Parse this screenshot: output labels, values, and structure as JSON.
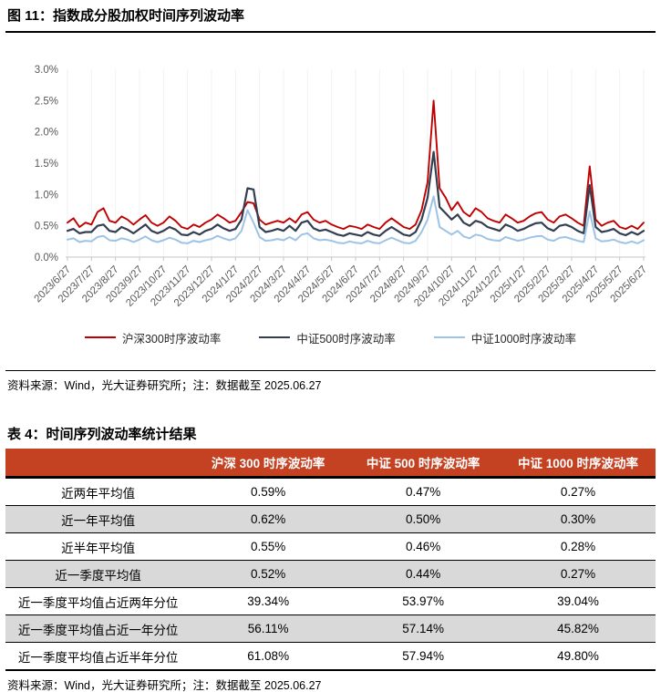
{
  "figure": {
    "title": "图 11：指数成分股加权时间序列波动率",
    "source_note": "资料来源：Wind，光大证券研究所；注：数据截至 2025.06.27"
  },
  "chart_data": {
    "type": "line",
    "title": "指数成分股加权时间序列波动率",
    "xlabel": "",
    "ylabel": "",
    "ylim": [
      0,
      3.0
    ],
    "ytick_labels": [
      "0.0%",
      "0.5%",
      "1.0%",
      "1.5%",
      "2.0%",
      "2.5%",
      "3.0%"
    ],
    "grid": "faint-vertical-only",
    "legend_position": "bottom",
    "axis_color": "#C6C6C6",
    "tick_text_color": "#595959",
    "categories": [
      "2023/6/27",
      "2023/7/27",
      "2023/8/27",
      "2023/9/27",
      "2023/10/27",
      "2023/11/27",
      "2023/12/27",
      "2024/1/27",
      "2024/2/27",
      "2024/3/27",
      "2024/4/27",
      "2024/5/27",
      "2024/6/27",
      "2024/7/27",
      "2024/8/27",
      "2024/9/27",
      "2024/10/27",
      "2024/11/27",
      "2024/12/27",
      "2025/1/27",
      "2025/2/27",
      "2025/3/27",
      "2025/4/27",
      "2025/5/27",
      "2025/6/27"
    ],
    "points_per_month": 4,
    "unit": "percent",
    "series": [
      {
        "name": "沪深300时序波动率",
        "color": "#C00000",
        "width": 1.9,
        "values": [
          0.55,
          0.62,
          0.48,
          0.55,
          0.52,
          0.72,
          0.78,
          0.58,
          0.55,
          0.65,
          0.6,
          0.52,
          0.6,
          0.67,
          0.55,
          0.5,
          0.55,
          0.65,
          0.58,
          0.48,
          0.45,
          0.52,
          0.48,
          0.55,
          0.6,
          0.68,
          0.62,
          0.55,
          0.58,
          0.72,
          0.88,
          0.86,
          0.6,
          0.52,
          0.55,
          0.58,
          0.55,
          0.62,
          0.55,
          0.68,
          0.72,
          0.6,
          0.55,
          0.58,
          0.52,
          0.48,
          0.45,
          0.5,
          0.48,
          0.45,
          0.52,
          0.48,
          0.45,
          0.55,
          0.62,
          0.55,
          0.48,
          0.45,
          0.52,
          0.75,
          1.2,
          2.5,
          1.1,
          0.95,
          0.75,
          0.88,
          0.72,
          0.65,
          0.78,
          0.72,
          0.62,
          0.58,
          0.55,
          0.68,
          0.62,
          0.55,
          0.58,
          0.65,
          0.7,
          0.72,
          0.6,
          0.55,
          0.65,
          0.68,
          0.62,
          0.55,
          0.5,
          1.45,
          0.6,
          0.5,
          0.55,
          0.58,
          0.48,
          0.45,
          0.5,
          0.45,
          0.55
        ]
      },
      {
        "name": "中证500时序波动率",
        "color": "#333F50",
        "width": 2.2,
        "values": [
          0.42,
          0.45,
          0.38,
          0.4,
          0.4,
          0.5,
          0.52,
          0.42,
          0.4,
          0.48,
          0.44,
          0.38,
          0.45,
          0.52,
          0.42,
          0.38,
          0.42,
          0.48,
          0.44,
          0.36,
          0.35,
          0.4,
          0.36,
          0.42,
          0.45,
          0.52,
          0.46,
          0.42,
          0.45,
          0.6,
          1.1,
          1.08,
          0.48,
          0.4,
          0.42,
          0.45,
          0.42,
          0.5,
          0.42,
          0.55,
          0.58,
          0.46,
          0.42,
          0.44,
          0.4,
          0.36,
          0.34,
          0.38,
          0.36,
          0.34,
          0.4,
          0.36,
          0.34,
          0.42,
          0.48,
          0.42,
          0.36,
          0.34,
          0.4,
          0.6,
          0.95,
          1.68,
          0.8,
          0.7,
          0.6,
          0.68,
          0.55,
          0.5,
          0.58,
          0.55,
          0.48,
          0.45,
          0.42,
          0.52,
          0.48,
          0.42,
          0.45,
          0.5,
          0.54,
          0.55,
          0.46,
          0.42,
          0.5,
          0.52,
          0.48,
          0.42,
          0.38,
          1.15,
          0.48,
          0.4,
          0.42,
          0.45,
          0.38,
          0.35,
          0.4,
          0.36,
          0.42
        ]
      },
      {
        "name": "中证1000时序波动率",
        "color": "#9DC3E6",
        "width": 2.0,
        "values": [
          0.28,
          0.3,
          0.24,
          0.26,
          0.25,
          0.32,
          0.34,
          0.27,
          0.26,
          0.3,
          0.28,
          0.24,
          0.28,
          0.33,
          0.27,
          0.24,
          0.27,
          0.31,
          0.28,
          0.23,
          0.22,
          0.26,
          0.24,
          0.27,
          0.29,
          0.34,
          0.3,
          0.27,
          0.3,
          0.42,
          0.75,
          0.55,
          0.32,
          0.26,
          0.27,
          0.29,
          0.27,
          0.32,
          0.27,
          0.36,
          0.38,
          0.3,
          0.27,
          0.28,
          0.26,
          0.23,
          0.22,
          0.25,
          0.23,
          0.22,
          0.26,
          0.23,
          0.22,
          0.27,
          0.31,
          0.27,
          0.23,
          0.22,
          0.26,
          0.4,
          0.6,
          0.97,
          0.48,
          0.42,
          0.36,
          0.42,
          0.33,
          0.3,
          0.36,
          0.34,
          0.29,
          0.27,
          0.26,
          0.32,
          0.29,
          0.26,
          0.28,
          0.31,
          0.33,
          0.34,
          0.28,
          0.26,
          0.31,
          0.32,
          0.29,
          0.26,
          0.24,
          0.73,
          0.3,
          0.25,
          0.26,
          0.28,
          0.24,
          0.22,
          0.25,
          0.22,
          0.27
        ]
      }
    ]
  },
  "table": {
    "title": "表 4：时间序列波动率统计结果",
    "header_bg": "#C44122",
    "alt_row_bg": "#D9D9D9",
    "columns": [
      "",
      "沪深 300 时序波动率",
      "中证 500 时序波动率",
      "中证 1000 时序波动率"
    ],
    "rows": [
      {
        "label": "近两年平均值",
        "values": [
          "0.59%",
          "0.47%",
          "0.27%"
        ]
      },
      {
        "label": "近一年平均值",
        "values": [
          "0.62%",
          "0.50%",
          "0.30%"
        ]
      },
      {
        "label": "近半年平均值",
        "values": [
          "0.55%",
          "0.46%",
          "0.28%"
        ]
      },
      {
        "label": "近一季度平均值",
        "values": [
          "0.52%",
          "0.44%",
          "0.27%"
        ]
      },
      {
        "label": "近一季度平均值占近两年分位",
        "values": [
          "39.34%",
          "53.97%",
          "39.04%"
        ]
      },
      {
        "label": "近一季度平均值占近一年分位",
        "values": [
          "56.11%",
          "57.14%",
          "45.82%"
        ]
      },
      {
        "label": "近一季度平均值占近半年分位",
        "values": [
          "61.08%",
          "57.94%",
          "49.80%"
        ]
      }
    ],
    "source_note": "资料来源：Wind，光大证券研究所；注：数据截至 2025.06.27"
  }
}
